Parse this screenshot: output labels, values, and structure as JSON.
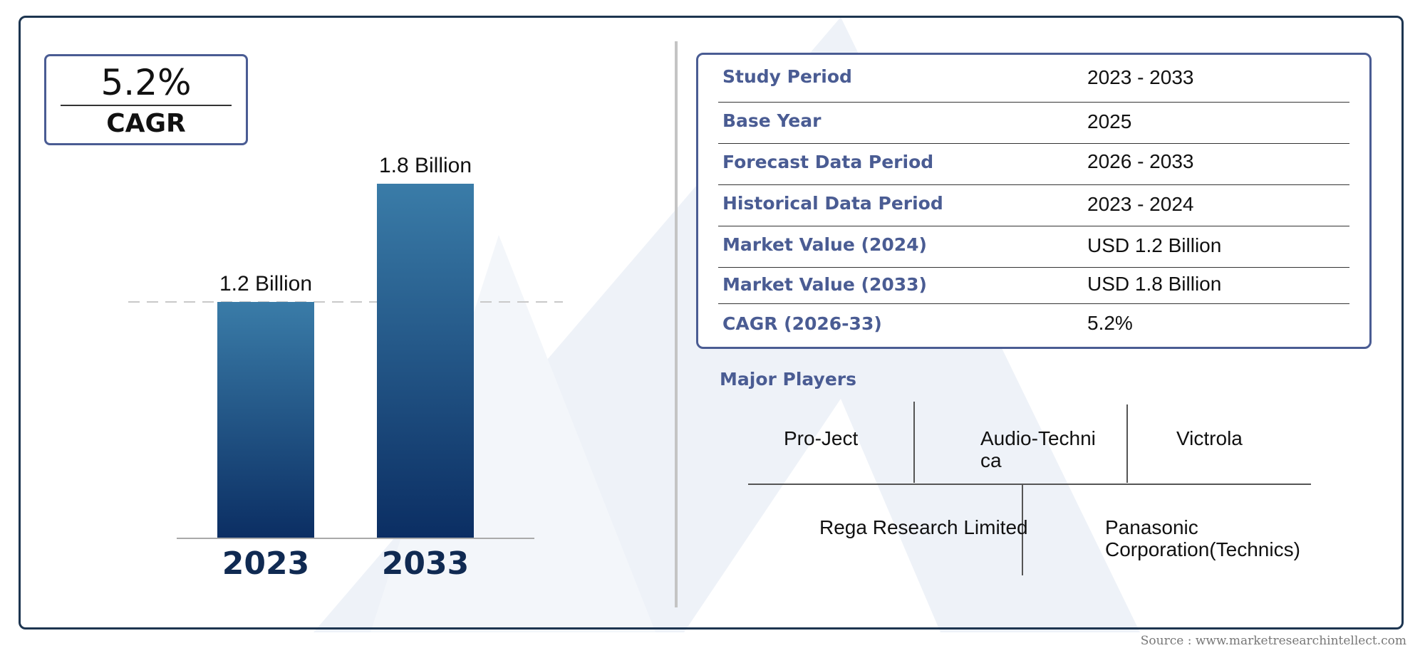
{
  "cagr": {
    "value": "5.2%",
    "label": "CAGR"
  },
  "chart_data": {
    "type": "bar",
    "categories": [
      "2023",
      "2033"
    ],
    "values": [
      1.2,
      1.8
    ],
    "value_labels": [
      "1.2 Billion",
      "1.8 Billion"
    ],
    "ylim": [
      0,
      1.8
    ],
    "reference_line_value": 1.2,
    "bar_color_top": "#3a7ca8",
    "bar_color_bottom": "#0b2e63",
    "category_label_color": "#102a52"
  },
  "summary": {
    "rows": [
      {
        "label": "Study Period",
        "value": "2023 - 2033"
      },
      {
        "label": "Base Year",
        "value": "2025"
      },
      {
        "label": "Forecast Data Period",
        "value": "2026 - 2033"
      },
      {
        "label": "Historical Data Period",
        "value": "2023 - 2024"
      },
      {
        "label": "Market Value (2024)",
        "value": "USD 1.2 Billion"
      },
      {
        "label": "Market Value (2033)",
        "value": "USD 1.8 Billion"
      },
      {
        "label": "CAGR (2026-33)",
        "value": "5.2%"
      }
    ]
  },
  "players": {
    "title": "Major Players",
    "names": [
      "Pro-Ject",
      "Audio-Techni ca",
      "Victrola",
      "Rega Research Limited",
      "Panasonic Corporation(Technics)"
    ]
  },
  "source": "Source : www.marketresearchintellect.com",
  "colors": {
    "accent": "#4a5c93",
    "frame": "#1d3550"
  }
}
